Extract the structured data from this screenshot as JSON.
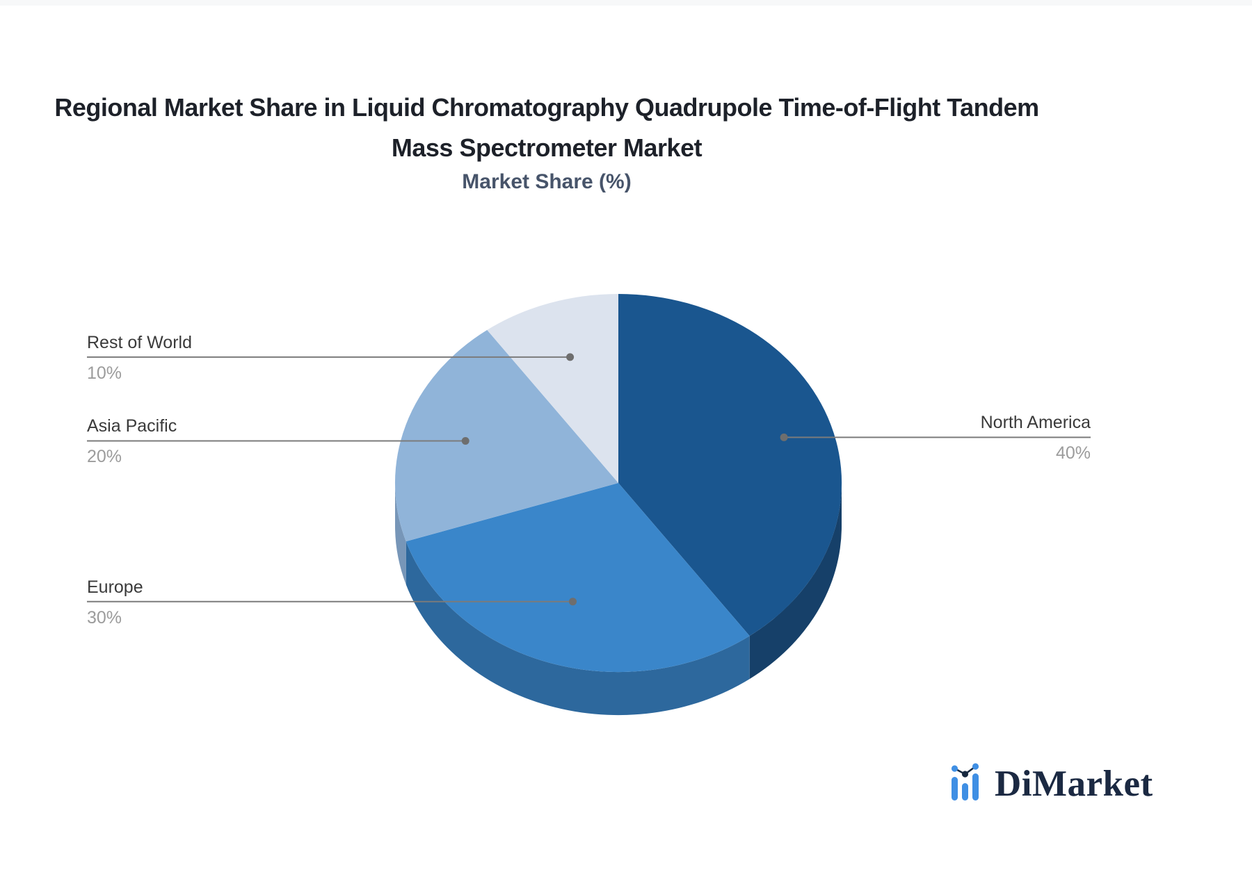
{
  "header": {
    "title_line1": "Regional Market Share in Liquid Chromatography Quadrupole Time-of-Flight Tandem",
    "title_line2": "Mass Spectrometer Market",
    "subtitle": "Market Share (%)"
  },
  "chart_data": {
    "type": "pie",
    "style": "3d",
    "title": "Regional Market Share in Liquid Chromatography Quadrupole Time-of-Flight Tandem Mass Spectrometer Market",
    "subtitle": "Market Share (%)",
    "unit": "%",
    "start_angle_deg": -90,
    "direction": "clockwise",
    "legend": "none",
    "slices": [
      {
        "label": "North America",
        "value": 40,
        "display_value": "40%",
        "color": "#1A568F",
        "side_color": "#164069",
        "label_side": "right"
      },
      {
        "label": "Europe",
        "value": 30,
        "display_value": "30%",
        "color": "#3A86CA",
        "side_color": "#2D689D",
        "label_side": "left"
      },
      {
        "label": "Asia Pacific",
        "value": 20,
        "display_value": "20%",
        "color": "#90B4D9",
        "side_color": "#7796B8",
        "label_side": "left"
      },
      {
        "label": "Rest of World",
        "value": 10,
        "display_value": "10%",
        "color": "#DCE3EE",
        "side_color": "#C3CEDE",
        "label_side": "left"
      }
    ],
    "label_line_color": "#7b7b7b",
    "label_dot_color": "#6e6e6e",
    "label_text_color": "#3a3a3a",
    "value_text_color": "#9c9c9c"
  },
  "footer": {
    "brand": "DiMarket",
    "brand_color": "#1b2942",
    "icon": "bar-chart-logo-icon",
    "icon_bar_color": "#3f8fe4",
    "icon_line_color": "#16283f"
  }
}
